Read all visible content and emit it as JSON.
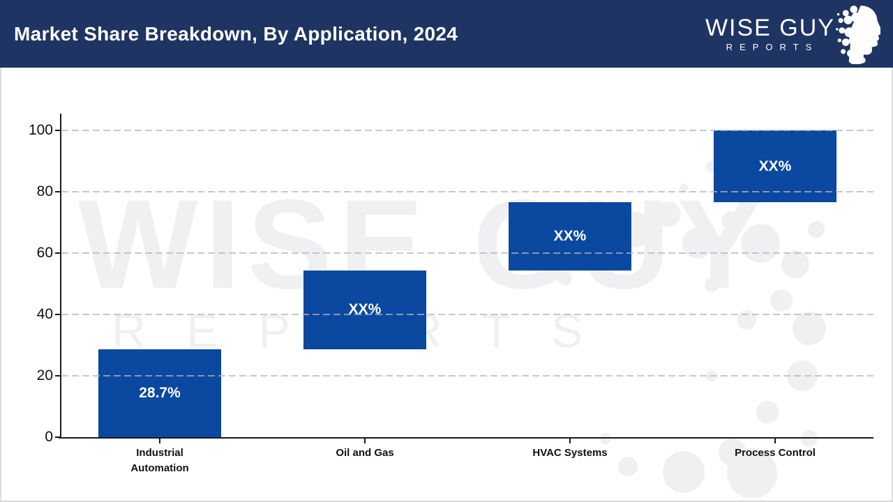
{
  "header": {
    "title": "Market Share Breakdown, By Application, 2024",
    "logo": {
      "wordmark": "WISE GUY",
      "subtext": "REPORTS",
      "face_icon": "face-profile-dots"
    }
  },
  "watermark": {
    "wordmark": "WISE GUY",
    "subtext": "REPORTS"
  },
  "colors": {
    "header_bg": "#1e3462",
    "bar": "#0b489f",
    "grid": "#d5d5d5",
    "axis": "#1a1a1a",
    "bar_label": "#ffffff",
    "watermark": "#f0f0f2"
  },
  "chart_data": {
    "type": "bar",
    "subtype": "waterfall",
    "title": "Market Share Breakdown, By Application, 2024",
    "categories": [
      "Industrial Automation",
      "Oil and Gas",
      "HVAC Systems",
      "Process Control"
    ],
    "segments": [
      {
        "category": "Industrial Automation",
        "start": 0,
        "end": 28.7,
        "label": "28.7%"
      },
      {
        "category": "Oil and Gas",
        "start": 28.7,
        "end": 54.3,
        "label": "XX%"
      },
      {
        "category": "HVAC Systems",
        "start": 54.3,
        "end": 76.5,
        "label": "XX%"
      },
      {
        "category": "Process Control",
        "start": 76.5,
        "end": 100,
        "label": "XX%"
      }
    ],
    "ylim": [
      0,
      100
    ],
    "yticks": [
      0,
      20,
      40,
      60,
      80,
      100
    ],
    "xlabel": "",
    "ylabel": "",
    "grid": "horizontal-dashed",
    "legend": "none"
  }
}
